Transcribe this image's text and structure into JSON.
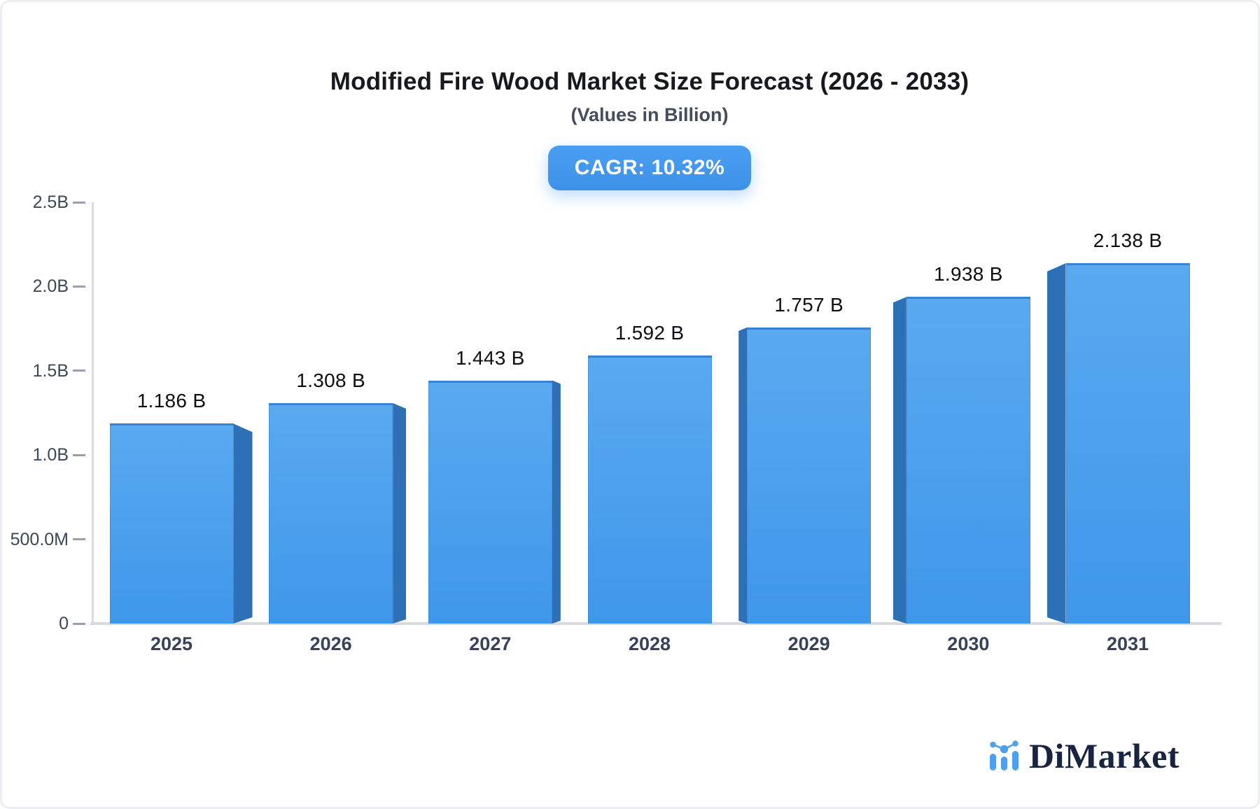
{
  "header": {
    "title": "Modified Fire Wood Market Size Forecast (2026 - 2033)",
    "subtitle": "(Values in Billion)",
    "cagr_label": "CAGR: 10.32%"
  },
  "chart_data": {
    "type": "bar",
    "title": "Modified Fire Wood Market Size Forecast (2026 - 2033)",
    "subtitle": "(Values in Billion)",
    "cagr_percent": "10.32%",
    "unit": "Billion",
    "categories": [
      "2025",
      "2026",
      "2027",
      "2028",
      "2029",
      "2030",
      "2031"
    ],
    "values": [
      1.186,
      1.308,
      1.443,
      1.592,
      1.757,
      1.938,
      2.138
    ],
    "value_labels": [
      "1.186 B",
      "1.308 B",
      "1.443 B",
      "1.592 B",
      "1.757 B",
      "1.938 B",
      "2.138 B"
    ],
    "ylim": [
      0,
      2.5
    ],
    "y_ticks": [
      {
        "value": 0.0,
        "label": "0"
      },
      {
        "value": 0.5,
        "label": "500.0M"
      },
      {
        "value": 1.0,
        "label": "1.0B"
      },
      {
        "value": 1.5,
        "label": "1.5B"
      },
      {
        "value": 2.0,
        "label": "2.0B"
      },
      {
        "value": 2.5,
        "label": "2.5B"
      }
    ],
    "grid": false,
    "legend": false,
    "colors": {
      "bar_face_top": "#59a9f0",
      "bar_face_bottom": "#3f97ea",
      "bar_top_edge": "#3583d2",
      "bar_side": "#2d70b5",
      "axis_line": "#d7dbdf",
      "badge_blue": "#4096ed",
      "value_label": "#0c0e11",
      "axis_label": "#3c4857"
    }
  },
  "branding": {
    "logo_text": "DiMarket",
    "logo_icon": "bar-chart-trend-icon",
    "logo_text_color": "#182440",
    "logo_icon_color": "#4da0f0"
  }
}
